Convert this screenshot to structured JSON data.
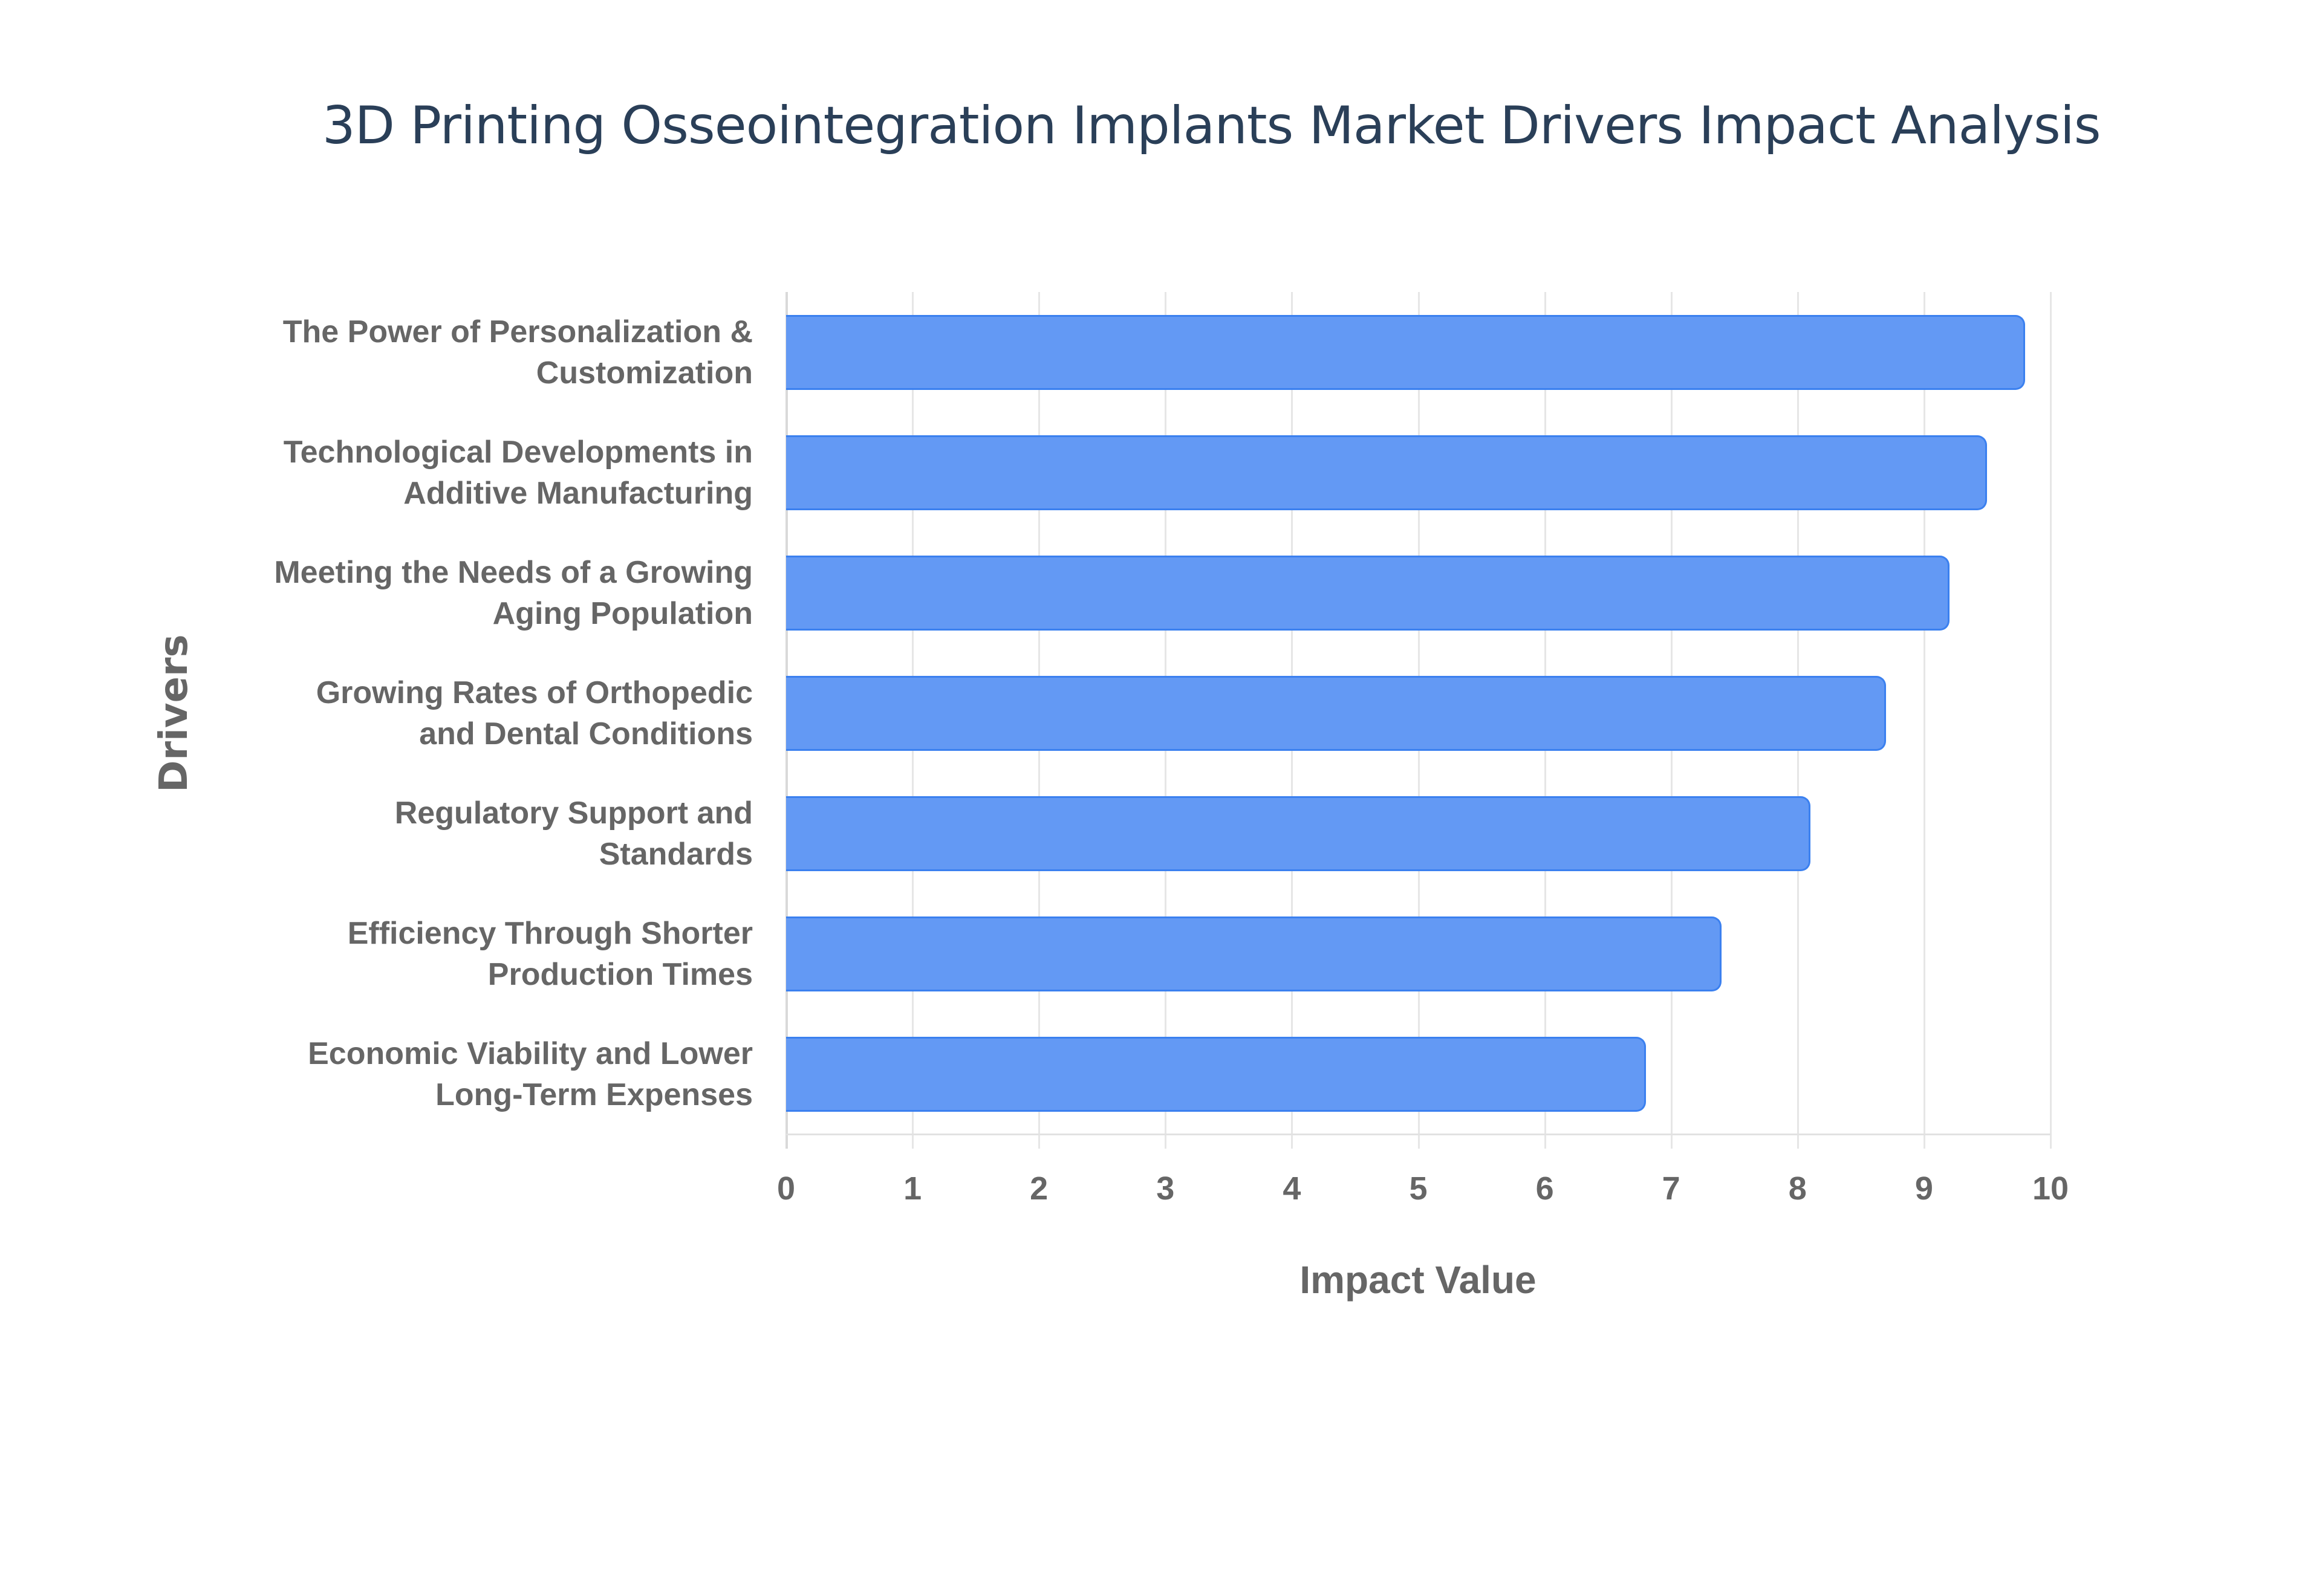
{
  "chart_data": {
    "type": "bar",
    "orientation": "horizontal",
    "title": "3D Printing Osseointegration Implants Market Drivers Impact Analysis",
    "xlabel": "Impact Value",
    "ylabel": "Drivers",
    "xlim": [
      0,
      10
    ],
    "x_ticks": [
      "0",
      "1",
      "2",
      "3",
      "4",
      "5",
      "6",
      "7",
      "8",
      "9",
      "10"
    ],
    "grid": true,
    "legend": null,
    "bar_color": "#6399f4",
    "bar_border_color": "#3b80ef",
    "categories": [
      "The Power of Personalization & Customization",
      "Technological Developments in Additive Manufacturing",
      "Meeting the Needs of a Growing Aging Population",
      "Growing Rates of Orthopedic and Dental Conditions",
      "Regulatory Support and Standards",
      "Efficiency Through Shorter Production Times",
      "Economic Viability and Lower Long-Term Expenses"
    ],
    "values": [
      9.8,
      9.5,
      9.2,
      8.7,
      8.1,
      7.4,
      6.8
    ]
  },
  "labels": [
    {
      "line1": "The Power of Personalization &",
      "line2": "Customization"
    },
    {
      "line1": "Technological Developments in",
      "line2": "Additive Manufacturing"
    },
    {
      "line1": "Meeting the Needs of a Growing",
      "line2": "Aging Population"
    },
    {
      "line1": "Growing Rates of Orthopedic",
      "line2": "and Dental Conditions"
    },
    {
      "line1": "Regulatory Support and",
      "line2": "Standards"
    },
    {
      "line1": "Efficiency Through Shorter",
      "line2": "Production Times"
    },
    {
      "line1": "Economic Viability and Lower",
      "line2": "Long-Term Expenses"
    }
  ]
}
